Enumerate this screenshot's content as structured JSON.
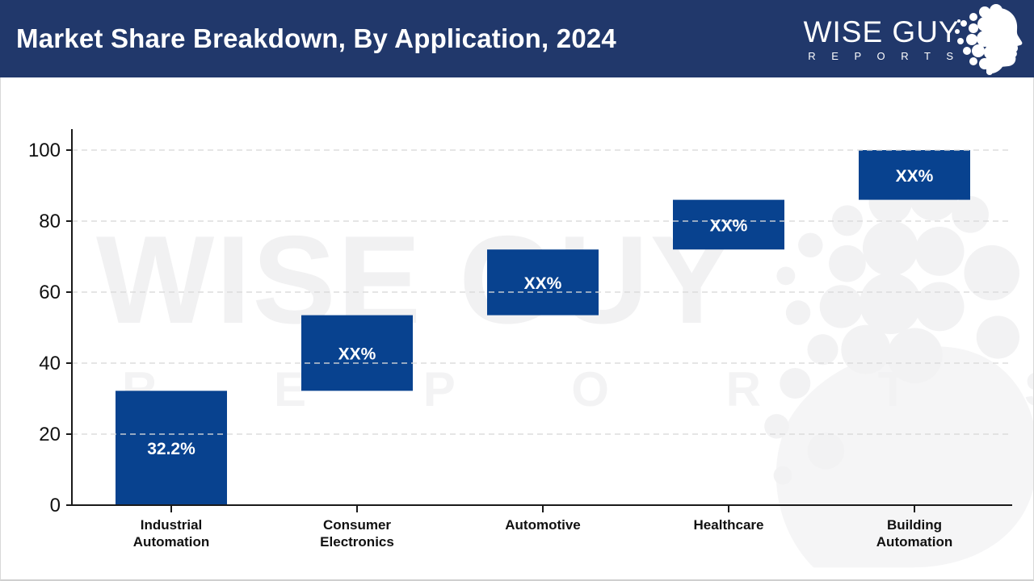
{
  "header": {
    "title": "Market Share Breakdown, By Application, 2024",
    "logo": {
      "name": "WISE GUY",
      "tagline": "R E P O R T S"
    }
  },
  "watermark": {
    "line1": "WISE GUY",
    "line2": "R E P O R T S"
  },
  "chart_data": {
    "type": "bar",
    "subtype": "waterfall",
    "title": "Market Share Breakdown, By Application, 2024",
    "categories": [
      [
        "Industrial",
        "Automation"
      ],
      [
        "Consumer",
        "Electronics"
      ],
      [
        "Automotive"
      ],
      [
        "Healthcare"
      ],
      [
        "Building",
        "Automation"
      ]
    ],
    "segments": [
      {
        "category": "Industrial Automation",
        "start": 0,
        "end": 32.2,
        "label": "32.2%"
      },
      {
        "category": "Consumer Electronics",
        "start": 32.2,
        "end": 53.5,
        "label": "XX%"
      },
      {
        "category": "Automotive",
        "start": 53.5,
        "end": 72,
        "label": "XX%"
      },
      {
        "category": "Healthcare",
        "start": 72,
        "end": 86,
        "label": "XX%"
      },
      {
        "category": "Building Automation",
        "start": 86,
        "end": 100,
        "label": "XX%"
      }
    ],
    "ylim": [
      0,
      100
    ],
    "yticks": [
      0,
      20,
      40,
      60,
      80,
      100
    ],
    "grid": "horizontal-dashed",
    "legend": "none",
    "bar_color": "#08428f",
    "bar_label_color": "#ffffff"
  },
  "colors": {
    "header_bg": "#21386b",
    "bar": "#08428f",
    "grid": "#d9d9d9",
    "axis": "#1a1a1a",
    "tick_text": "#111111",
    "watermark": "#f1f1f2"
  }
}
